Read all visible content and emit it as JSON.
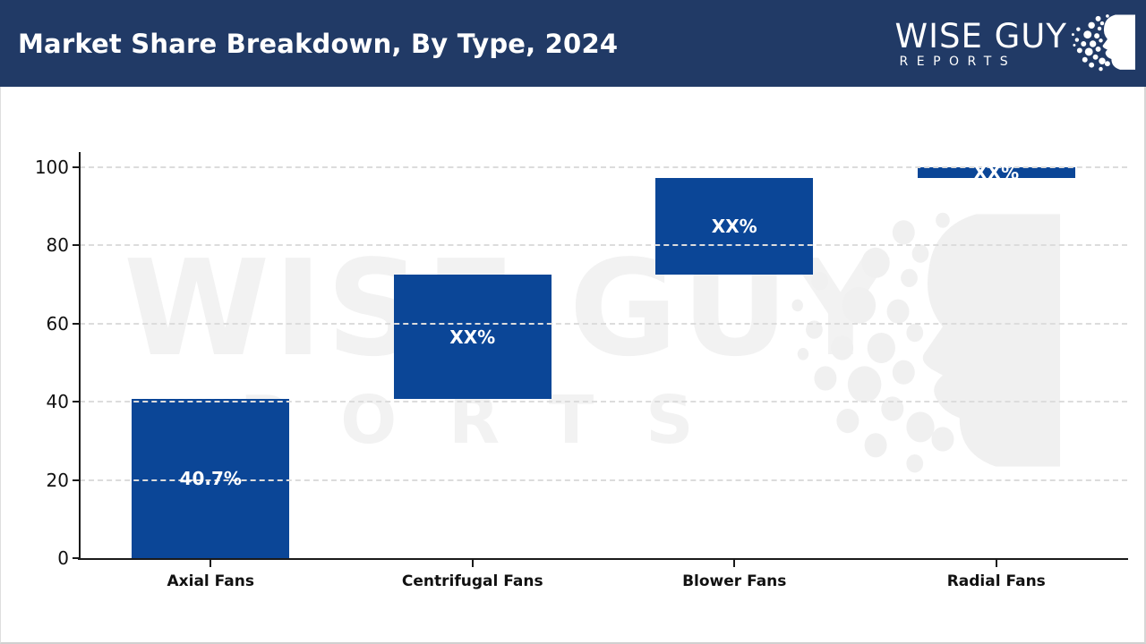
{
  "header": {
    "title": "Market Share Breakdown, By Type, 2024",
    "logo": {
      "brand": "WISE GUY",
      "sub": "REPORTS"
    }
  },
  "watermark": {
    "line1": "WISE GUY",
    "line2": "PORTS"
  },
  "chart_data": {
    "type": "bar",
    "variant": "waterfall",
    "title": "Market Share Breakdown, By Type, 2024",
    "categories": [
      "Axial Fans",
      "Centrifugal Fans",
      "Blower Fans",
      "Radial Fans"
    ],
    "segments": [
      {
        "category": "Axial Fans",
        "start": 0,
        "end": 40.7,
        "label": "40.7%"
      },
      {
        "category": "Centrifugal Fans",
        "start": 40.7,
        "end": 72.5,
        "label": "XX%"
      },
      {
        "category": "Blower Fans",
        "start": 72.5,
        "end": 97.3,
        "label": "XX%"
      },
      {
        "category": "Radial Fans",
        "start": 97.3,
        "end": 100,
        "label": "XX%"
      }
    ],
    "xlabel": "",
    "ylabel": "",
    "ylim": [
      0,
      100
    ],
    "yticks": [
      0,
      20,
      40,
      60,
      80,
      100
    ],
    "grid": true,
    "grid_style": "dashed",
    "legend": false,
    "bar_color": "#0b4697",
    "bar_label_color": "#ffffff",
    "header_bg_color": "#213a66",
    "axis_color": "#1a1a1a",
    "grid_color": "#dcdcdc",
    "watermark_color": "#f2f2f2"
  }
}
